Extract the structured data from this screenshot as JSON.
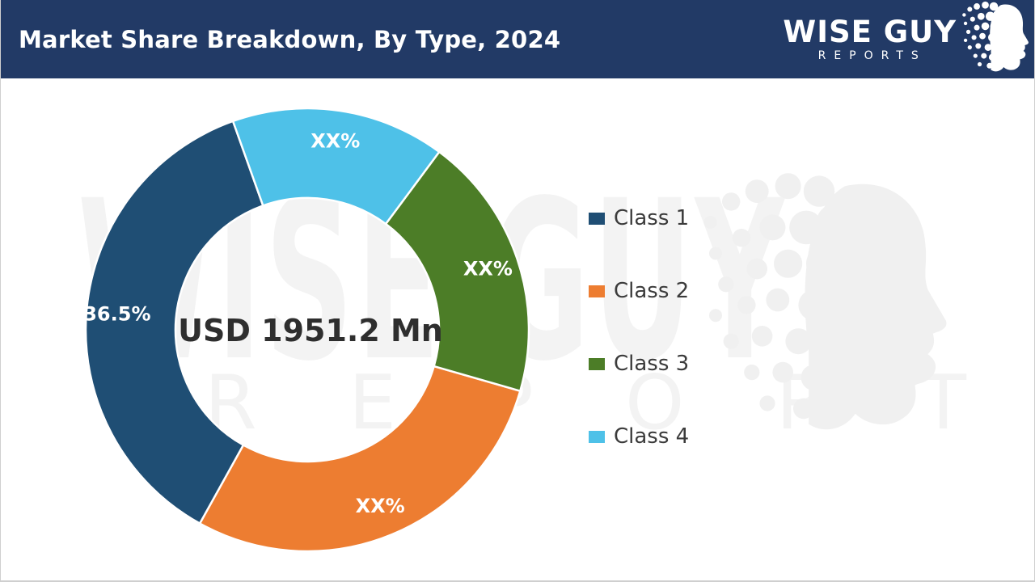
{
  "header": {
    "title": "Market Share Breakdown, By Type, 2024",
    "logo": {
      "line1": "WISE GUY",
      "line2": "REPORTS"
    }
  },
  "watermark": {
    "line1": "WISE GUY",
    "line2": "R E P O R T S"
  },
  "chart_data": {
    "type": "pie",
    "subtype": "donut",
    "title": "Market Share Breakdown, By Type, 2024",
    "center_label": "USD 1951.2 Mn",
    "start_angle_deg": 109.6,
    "direction": "counterclockwise",
    "inner_radius_ratio": 0.595,
    "label_radius_ratio": 0.861,
    "legend_position": "right",
    "series": [
      {
        "name": "Class 1",
        "value_pct": 36.5,
        "slice_label": "36.5%",
        "color": "#1F4E74"
      },
      {
        "name": "Class 2",
        "value_pct": 28.6,
        "slice_label": "XX%",
        "color": "#ED7D31"
      },
      {
        "name": "Class 3",
        "value_pct": 19.3,
        "slice_label": "XX%",
        "color": "#4C7D27"
      },
      {
        "name": "Class 4",
        "value_pct": 15.6,
        "slice_label": "XX%",
        "color": "#4EC1E8"
      }
    ]
  },
  "colors": {
    "header_bg": "#223A66",
    "header_text": "#FFFFFF",
    "slice_label_text": "#FFFFFF",
    "center_text": "#2E2E2E",
    "legend_text": "#3B3B3B",
    "watermark": "#F3F3F3",
    "page_border": "#CFCFCF"
  }
}
